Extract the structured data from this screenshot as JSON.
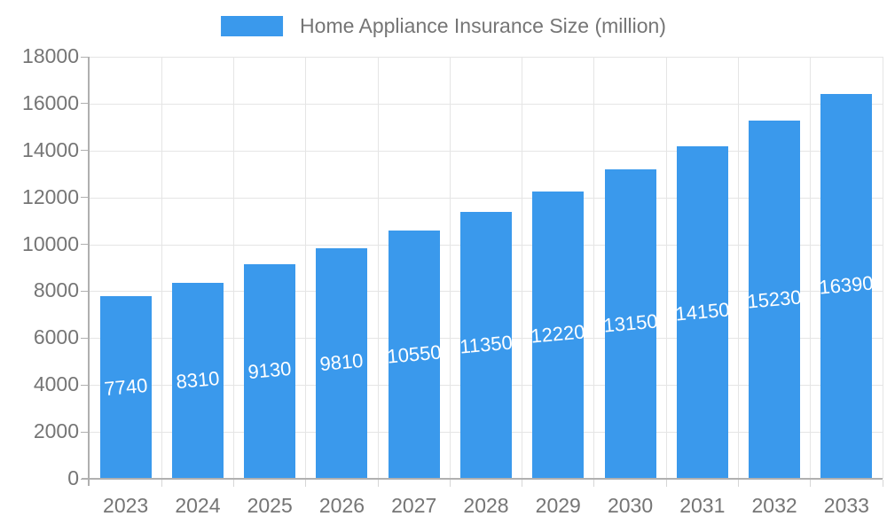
{
  "legend": {
    "label": "Home Appliance Insurance Size (million)"
  },
  "chart_data": {
    "type": "bar",
    "title": "Home Appliance Insurance Size (million)",
    "series_name": "Home Appliance Insurance Size (million)",
    "categories": [
      "2023",
      "2024",
      "2025",
      "2026",
      "2027",
      "2028",
      "2029",
      "2030",
      "2031",
      "2032",
      "2033"
    ],
    "values": [
      7740,
      8310,
      9130,
      9810,
      10550,
      11350,
      12220,
      13150,
      14150,
      15230,
      16390
    ],
    "xlabel": "",
    "ylabel": "",
    "ylim": [
      0,
      18000
    ],
    "ytick_step": 2000,
    "ytick_labels": [
      "0",
      "2000",
      "4000",
      "6000",
      "8000",
      "10000",
      "12000",
      "14000",
      "16000",
      "18000"
    ],
    "grid": true,
    "legend_position": "top",
    "bar_labels_visible": true,
    "colors": {
      "bar": "#3a99ec",
      "bar_label_text": "#ffffff",
      "axis_text": "#757575",
      "grid_line": "#e5e5e5",
      "axis_line": "#b0b0b0",
      "background": "#ffffff"
    }
  }
}
